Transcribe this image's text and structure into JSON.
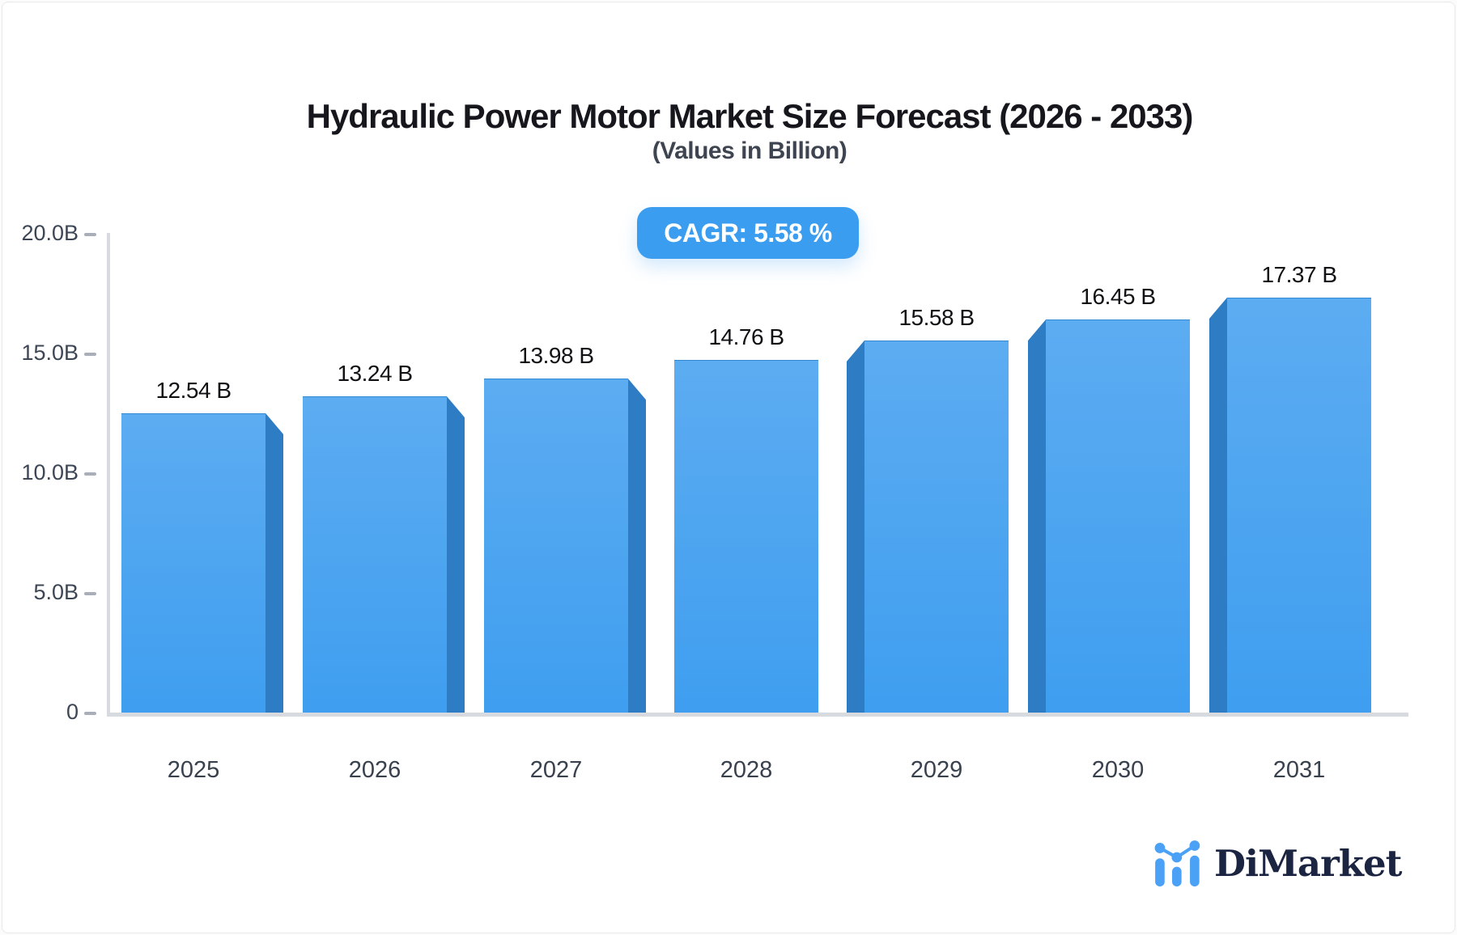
{
  "header": {
    "title": "Hydraulic Power Motor Market Size Forecast (2026 - 2033)",
    "subtitle": "(Values in Billion)",
    "cagr_label": "CAGR: 5.58 %"
  },
  "branding": {
    "logo_text": "DiMarket",
    "logo_icon": "bar-line-chart-icon"
  },
  "colors": {
    "badge_bg": "#3b9df0",
    "bar_face_top": "#5cacf1",
    "bar_face_bottom": "#3f9ef0",
    "bar_side": "#2d7cc4",
    "axis_line": "#d7dade",
    "tick_dash": "#a9afb9",
    "logo_blue": "#4aa1f6",
    "logo_navy": "#1b2440"
  },
  "chart_data": {
    "type": "bar",
    "title": "Hydraulic Power Motor Market Size Forecast (2026 - 2033)",
    "subtitle": "(Values in Billion)",
    "xlabel": "",
    "ylabel": "",
    "ylim": [
      0,
      20
    ],
    "grid": false,
    "legend": false,
    "categories": [
      "2025",
      "2026",
      "2027",
      "2028",
      "2029",
      "2030",
      "2031"
    ],
    "values": [
      12.54,
      13.24,
      13.98,
      14.76,
      15.58,
      16.45,
      17.37
    ],
    "value_labels": [
      "12.54 B",
      "13.24 B",
      "13.98 B",
      "14.76 B",
      "15.58 B",
      "16.45 B",
      "17.37 B"
    ],
    "y_ticks": [
      {
        "label": "20.0B",
        "value": 20
      },
      {
        "label": "15.0B",
        "value": 15
      },
      {
        "label": "10.0B",
        "value": 10
      },
      {
        "label": "5.0B",
        "value": 5
      },
      {
        "label": "0",
        "value": 0
      }
    ],
    "annotation": "CAGR: 5.58 %"
  }
}
